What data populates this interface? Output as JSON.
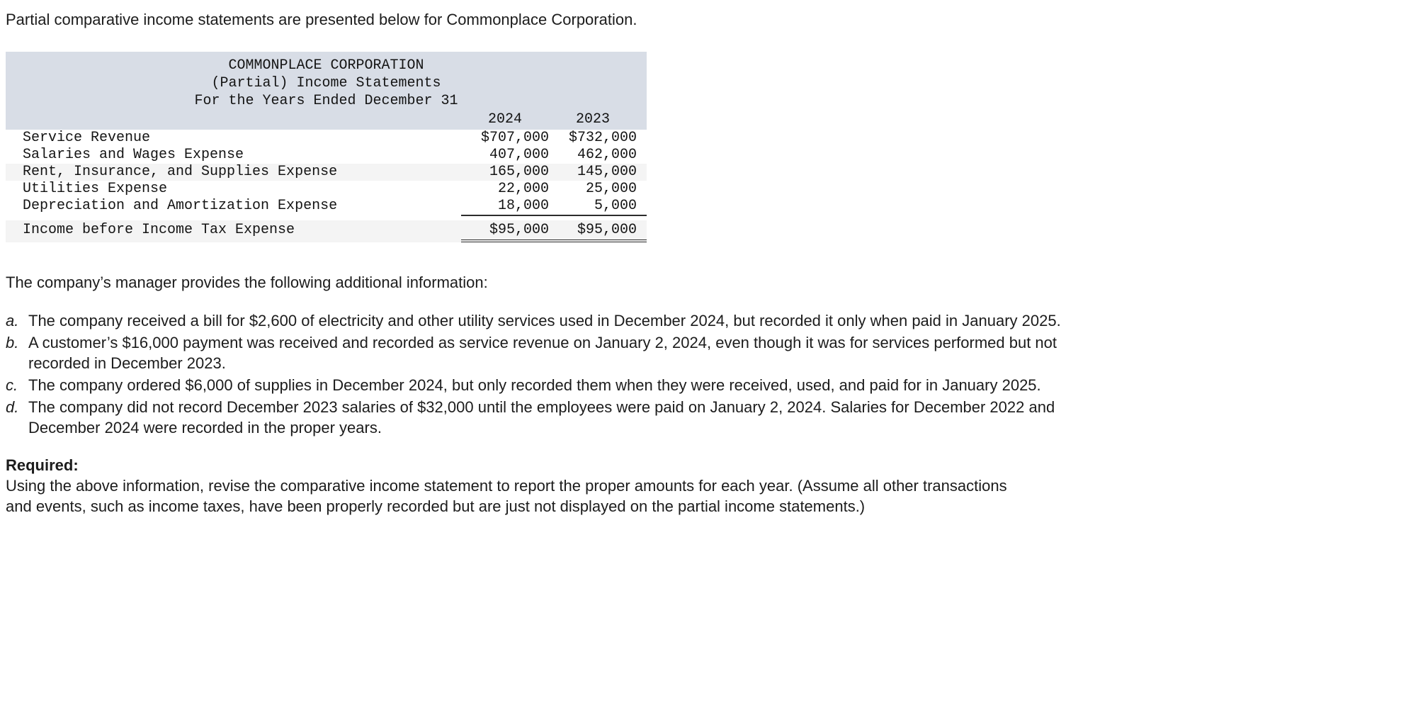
{
  "intro": "Partial comparative income statements are presented below for Commonplace Corporation.",
  "statement": {
    "title_lines": [
      "COMMONPLACE CORPORATION",
      "(Partial) Income Statements",
      "For the Years Ended December 31"
    ],
    "columns": [
      "2024",
      "2023"
    ],
    "rows": [
      {
        "label": "Service Revenue",
        "y2024": "$707,000",
        "y2023": "$732,000"
      },
      {
        "label": "Salaries and Wages Expense",
        "y2024": "407,000",
        "y2023": "462,000"
      },
      {
        "label": "Rent, Insurance, and Supplies Expense",
        "y2024": "165,000",
        "y2023": "145,000"
      },
      {
        "label": "Utilities Expense",
        "y2024": "22,000",
        "y2023": "25,000"
      },
      {
        "label": "Depreciation and Amortization Expense",
        "y2024": "18,000",
        "y2023": "5,000"
      },
      {
        "label": "Income before Income Tax Expense",
        "y2024": "$95,000",
        "y2023": "$95,000"
      }
    ],
    "header_bg": "#d8dde6",
    "stripe_bg": "#f4f4f4"
  },
  "manager_note": "The company’s manager provides the following additional information:",
  "items": [
    {
      "marker": "a.",
      "text": "The company received a bill for $2,600 of electricity and other utility services used in December 2024, but recorded it only when paid in January 2025."
    },
    {
      "marker": "b.",
      "text": "A customer’s $16,000 payment was received and recorded as service revenue on January 2, 2024, even though it was for services performed but not recorded in December 2023."
    },
    {
      "marker": "c.",
      "text": "The company ordered $6,000 of supplies in December 2024, but only recorded them when they were received, used, and paid for in January 2025."
    },
    {
      "marker": "d.",
      "text": "The company did not record December 2023 salaries of $32,000 until the employees were paid on January 2, 2024. Salaries for December 2022 and December 2024 were recorded in the proper years."
    }
  ],
  "required": {
    "label": "Required:",
    "text": "Using the above information, revise the comparative income statement to report the proper amounts for each year. (Assume all other transactions and events, such as income taxes, have been properly recorded but are just not displayed on the partial income statements.)"
  }
}
